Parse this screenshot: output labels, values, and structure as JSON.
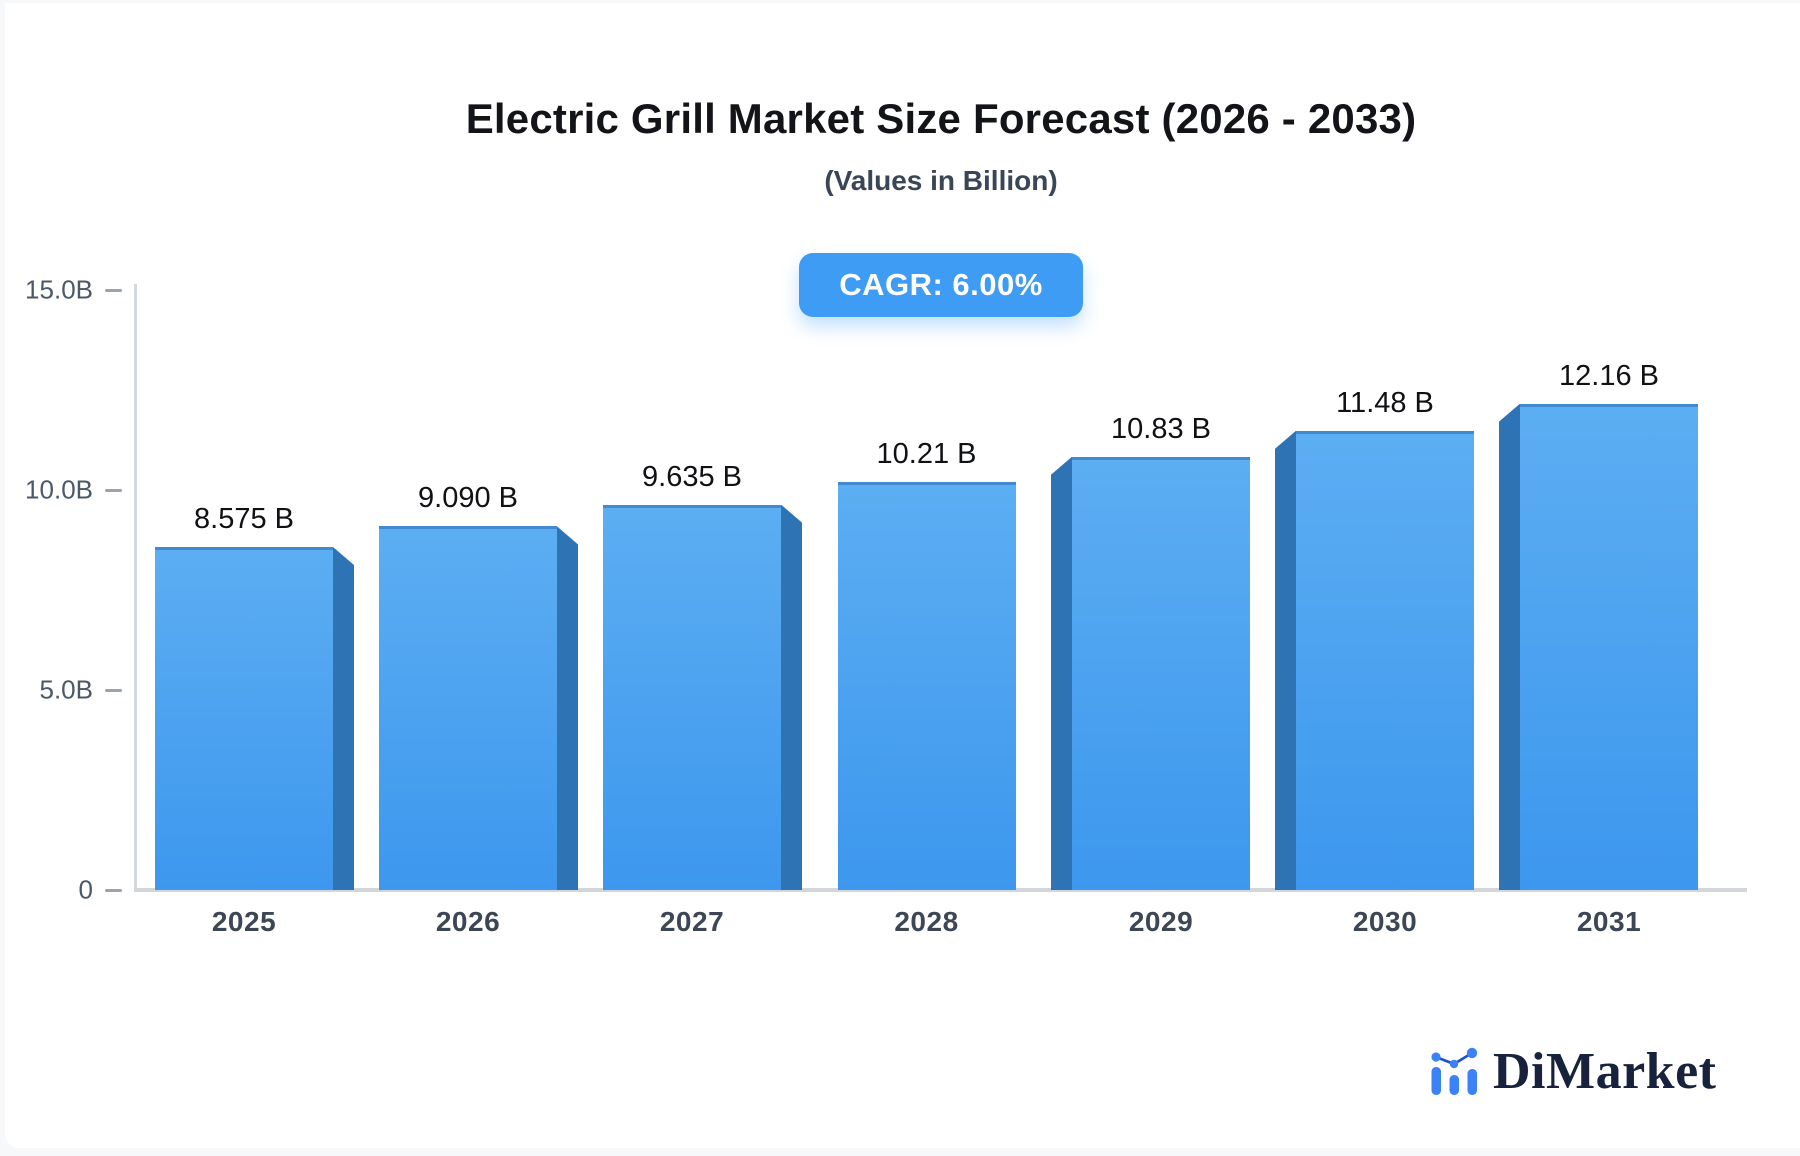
{
  "page": {
    "background": "#f6f8fa",
    "card_background": "#ffffff"
  },
  "header": {
    "title": "Electric Grill Market Size Forecast (2026 - 2033)",
    "subtitle": "(Values in Billion)"
  },
  "badge": {
    "label": "CAGR: 6.00%",
    "background": "#3f9cf4",
    "text_color": "#ffffff"
  },
  "chart_data": {
    "type": "bar",
    "title": "Electric Grill Market Size Forecast (2026 - 2033)",
    "subtitle": "(Values in Billion)",
    "categories": [
      "2025",
      "2026",
      "2027",
      "2028",
      "2029",
      "2030",
      "2031"
    ],
    "values": [
      8.575,
      9.09,
      9.635,
      10.21,
      10.83,
      11.48,
      12.16
    ],
    "value_labels": [
      "8.575 B",
      "9.090 B",
      "9.635 B",
      "10.21 B",
      "10.83 B",
      "11.48 B",
      "12.16 B"
    ],
    "unit": "Billion",
    "y_ticks": [
      {
        "label": "0",
        "value": 0
      },
      {
        "label": "5.0B",
        "value": 5
      },
      {
        "label": "10.0B",
        "value": 10
      },
      {
        "label": "15.0B",
        "value": 15
      }
    ],
    "ylim": [
      0,
      15
    ],
    "grid": false,
    "legend_position": "none",
    "bar_color_top": "#5caef2",
    "bar_color_bottom": "#3d97ee",
    "bar_side_color": "#2e74b4",
    "axis_color": "#d5d8dd",
    "baseline_color": "#d2d6db"
  },
  "logo": {
    "text": "DiMarket",
    "icon": "bar-chart-logo-icon",
    "text_color": "#17233c",
    "icon_color": "#3b82f6",
    "icon_line_color": "#1d4ed8"
  }
}
